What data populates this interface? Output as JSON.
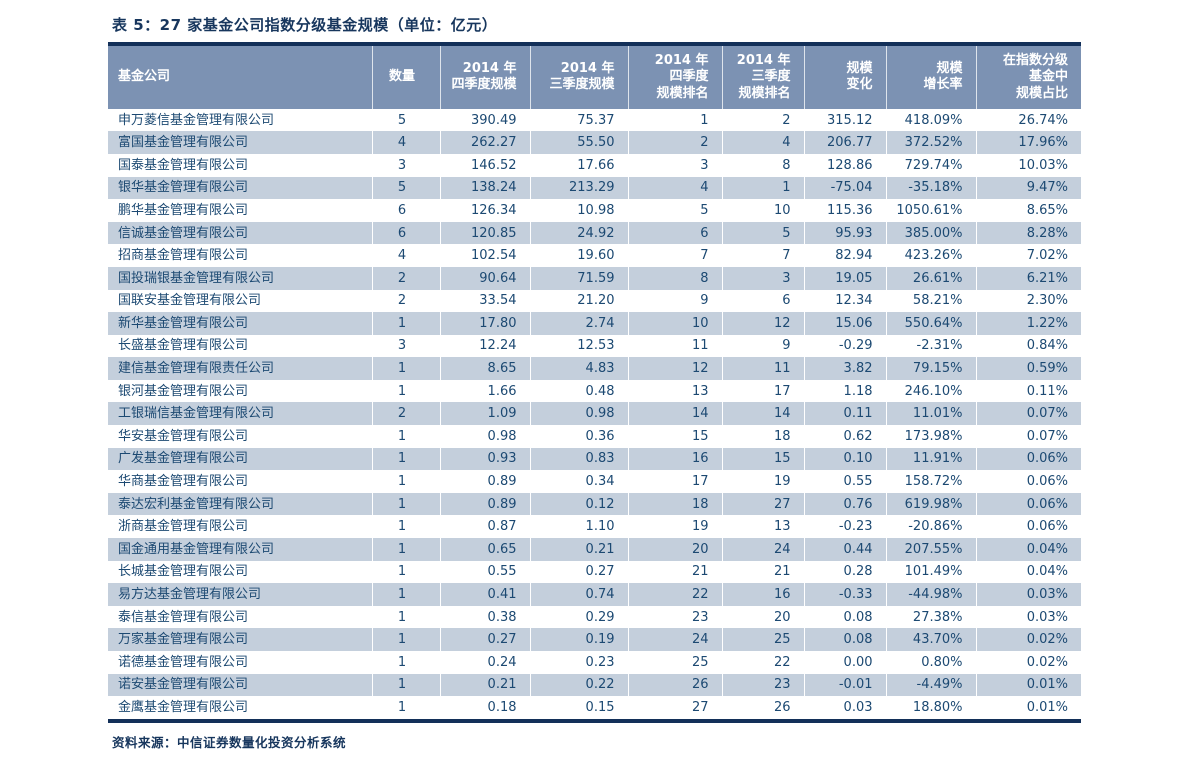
{
  "title": "表 5：27 家基金公司指数分级基金规模（单位：亿元）",
  "source_note": "资料来源：中信证券数量化投资分析系统",
  "colors": {
    "title_text": "#17365D",
    "header_bg": "#7C92B3",
    "header_text": "#FFFFFF",
    "cell_text": "#1C4972",
    "stripe_bg": "#C4CFDC",
    "table_border": "#133059"
  },
  "chart_data": {
    "type": "table",
    "title": "表 5：27 家基金公司指数分级基金规模（单位：亿元）",
    "source": "资料来源：中信证券数量化投资分析系统",
    "columns": [
      "基金公司",
      "数量",
      "2014 年\n四季度规模",
      "2014 年\n三季度规模",
      "2014 年\n四季度\n规模排名",
      "2014 年\n三季度\n规模排名",
      "规模\n变化",
      "规模\n增长率",
      "在指数分级\n基金中\n规模占比"
    ],
    "rows": [
      [
        "申万菱信基金管理有限公司",
        "5",
        "390.49",
        "75.37",
        "1",
        "2",
        "315.12",
        "418.09%",
        "26.74%"
      ],
      [
        "富国基金管理有限公司",
        "4",
        "262.27",
        "55.50",
        "2",
        "4",
        "206.77",
        "372.52%",
        "17.96%"
      ],
      [
        "国泰基金管理有限公司",
        "3",
        "146.52",
        "17.66",
        "3",
        "8",
        "128.86",
        "729.74%",
        "10.03%"
      ],
      [
        "银华基金管理有限公司",
        "5",
        "138.24",
        "213.29",
        "4",
        "1",
        "-75.04",
        "-35.18%",
        "9.47%"
      ],
      [
        "鹏华基金管理有限公司",
        "6",
        "126.34",
        "10.98",
        "5",
        "10",
        "115.36",
        "1050.61%",
        "8.65%"
      ],
      [
        "信诚基金管理有限公司",
        "6",
        "120.85",
        "24.92",
        "6",
        "5",
        "95.93",
        "385.00%",
        "8.28%"
      ],
      [
        "招商基金管理有限公司",
        "4",
        "102.54",
        "19.60",
        "7",
        "7",
        "82.94",
        "423.26%",
        "7.02%"
      ],
      [
        "国投瑞银基金管理有限公司",
        "2",
        "90.64",
        "71.59",
        "8",
        "3",
        "19.05",
        "26.61%",
        "6.21%"
      ],
      [
        "国联安基金管理有限公司",
        "2",
        "33.54",
        "21.20",
        "9",
        "6",
        "12.34",
        "58.21%",
        "2.30%"
      ],
      [
        "新华基金管理有限公司",
        "1",
        "17.80",
        "2.74",
        "10",
        "12",
        "15.06",
        "550.64%",
        "1.22%"
      ],
      [
        "长盛基金管理有限公司",
        "3",
        "12.24",
        "12.53",
        "11",
        "9",
        "-0.29",
        "-2.31%",
        "0.84%"
      ],
      [
        "建信基金管理有限责任公司",
        "1",
        "8.65",
        "4.83",
        "12",
        "11",
        "3.82",
        "79.15%",
        "0.59%"
      ],
      [
        "银河基金管理有限公司",
        "1",
        "1.66",
        "0.48",
        "13",
        "17",
        "1.18",
        "246.10%",
        "0.11%"
      ],
      [
        "工银瑞信基金管理有限公司",
        "2",
        "1.09",
        "0.98",
        "14",
        "14",
        "0.11",
        "11.01%",
        "0.07%"
      ],
      [
        "华安基金管理有限公司",
        "1",
        "0.98",
        "0.36",
        "15",
        "18",
        "0.62",
        "173.98%",
        "0.07%"
      ],
      [
        "广发基金管理有限公司",
        "1",
        "0.93",
        "0.83",
        "16",
        "15",
        "0.10",
        "11.91%",
        "0.06%"
      ],
      [
        "华商基金管理有限公司",
        "1",
        "0.89",
        "0.34",
        "17",
        "19",
        "0.55",
        "158.72%",
        "0.06%"
      ],
      [
        "泰达宏利基金管理有限公司",
        "1",
        "0.89",
        "0.12",
        "18",
        "27",
        "0.76",
        "619.98%",
        "0.06%"
      ],
      [
        "浙商基金管理有限公司",
        "1",
        "0.87",
        "1.10",
        "19",
        "13",
        "-0.23",
        "-20.86%",
        "0.06%"
      ],
      [
        "国金通用基金管理有限公司",
        "1",
        "0.65",
        "0.21",
        "20",
        "24",
        "0.44",
        "207.55%",
        "0.04%"
      ],
      [
        "长城基金管理有限公司",
        "1",
        "0.55",
        "0.27",
        "21",
        "21",
        "0.28",
        "101.49%",
        "0.04%"
      ],
      [
        "易方达基金管理有限公司",
        "1",
        "0.41",
        "0.74",
        "22",
        "16",
        "-0.33",
        "-44.98%",
        "0.03%"
      ],
      [
        "泰信基金管理有限公司",
        "1",
        "0.38",
        "0.29",
        "23",
        "20",
        "0.08",
        "27.38%",
        "0.03%"
      ],
      [
        "万家基金管理有限公司",
        "1",
        "0.27",
        "0.19",
        "24",
        "25",
        "0.08",
        "43.70%",
        "0.02%"
      ],
      [
        "诺德基金管理有限公司",
        "1",
        "0.24",
        "0.23",
        "25",
        "22",
        "0.00",
        "0.80%",
        "0.02%"
      ],
      [
        "诺安基金管理有限公司",
        "1",
        "0.21",
        "0.22",
        "26",
        "23",
        "-0.01",
        "-4.49%",
        "0.01%"
      ],
      [
        "金鹰基金管理有限公司",
        "1",
        "0.18",
        "0.15",
        "27",
        "26",
        "0.03",
        "18.80%",
        "0.01%"
      ]
    ]
  }
}
